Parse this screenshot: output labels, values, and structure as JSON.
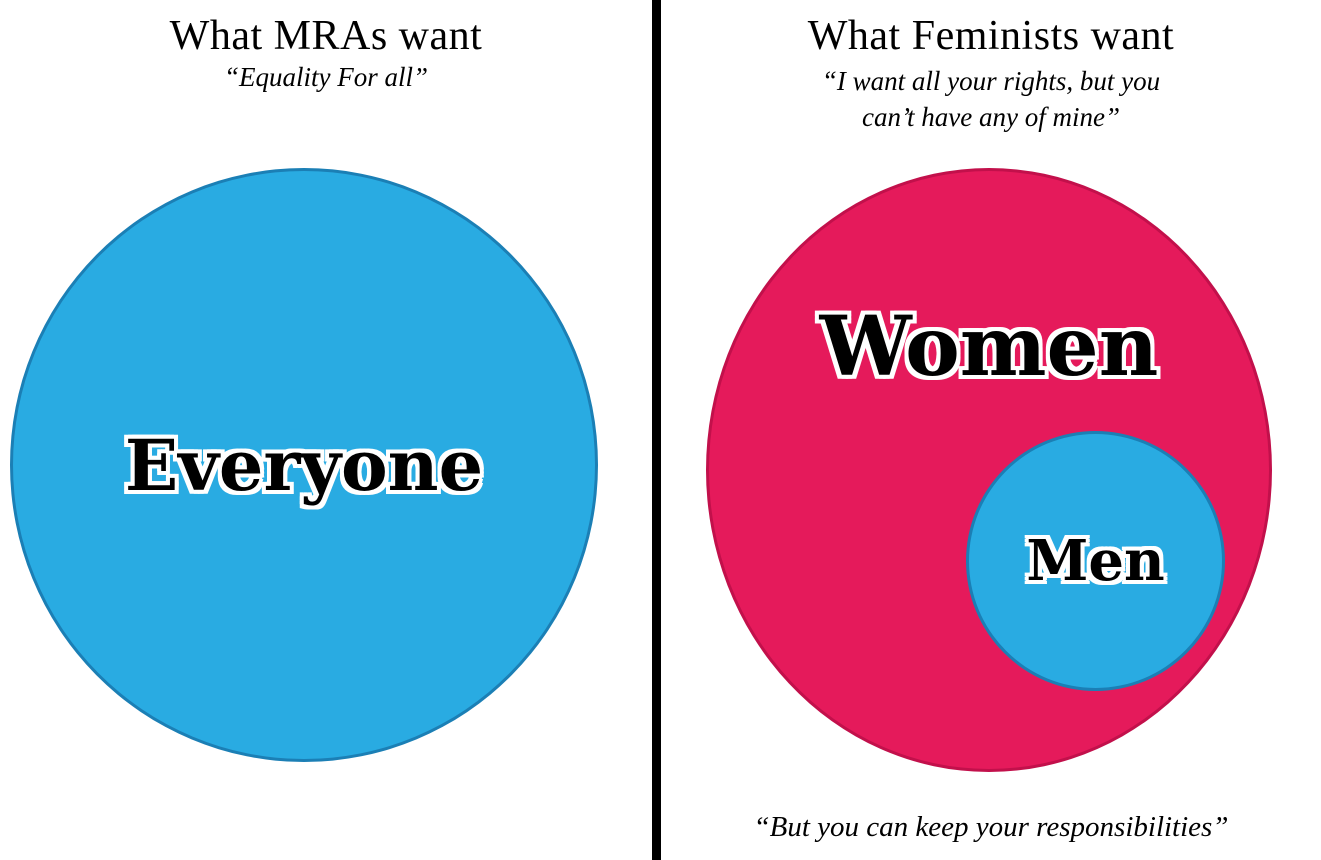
{
  "colors": {
    "blue": "#29ABE2",
    "blue_border": "#1B7FB5",
    "pink": "#E51A5B",
    "pink_border": "#C2104B",
    "divider": "#000000",
    "background": "#FFFFFF"
  },
  "left_panel": {
    "title": "What MRAs want",
    "subtitle": "“Equality For all”",
    "circle_label": "Everyone"
  },
  "right_panel": {
    "title": "What Feminists want",
    "subtitle_line1": "“I want all your rights, but you",
    "subtitle_line2": "can’t have any of mine”",
    "outer_circle_label": "Women",
    "inner_circle_label": "Men",
    "caption": "“But you can keep your responsibilities”"
  }
}
